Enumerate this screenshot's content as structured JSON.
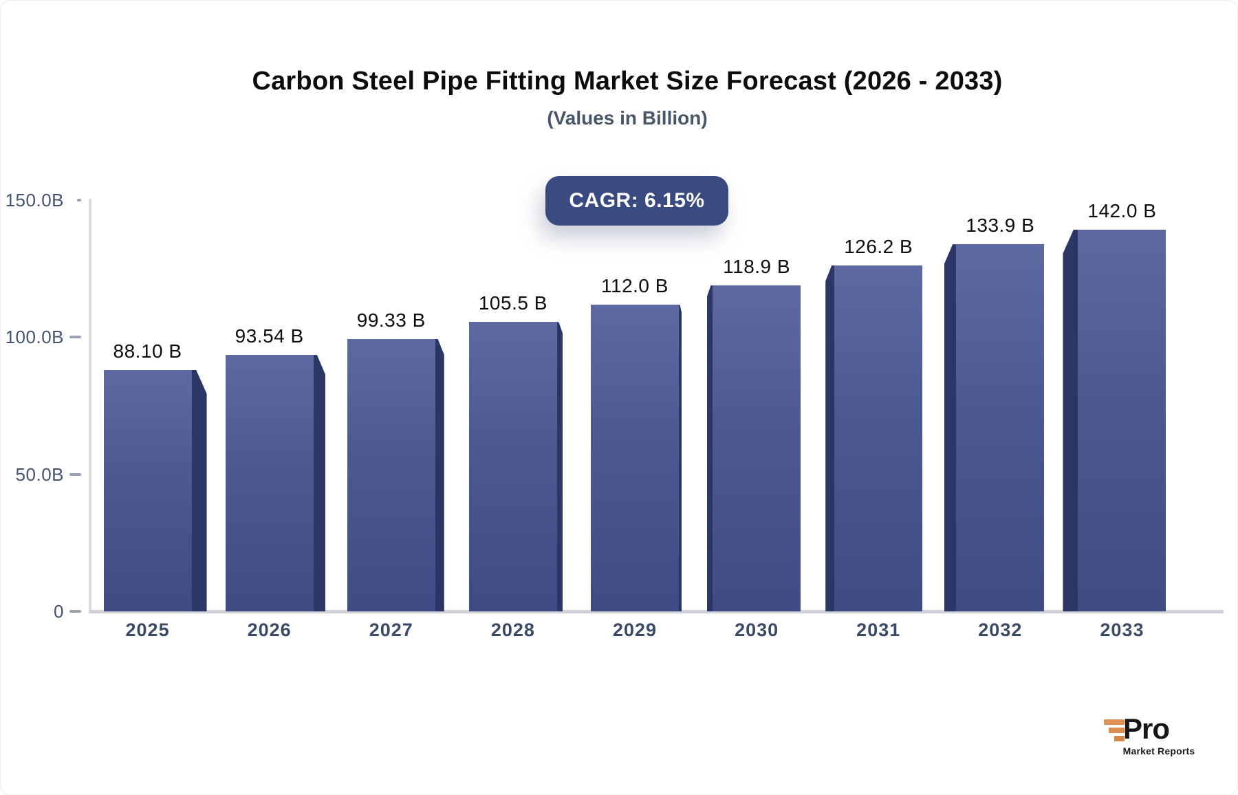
{
  "header": {
    "title": "Carbon Steel Pipe Fitting Market Size Forecast (2026 - 2033)",
    "subtitle": "(Values in Billion)",
    "cagr_label": "CAGR: 6.15%"
  },
  "chart_data": {
    "type": "bar",
    "title": "Carbon Steel Pipe Fitting Market Size Forecast (2026 - 2033)",
    "subtitle": "(Values in Billion)",
    "cagr_percent": 6.15,
    "unit": "Billion",
    "categories": [
      "2025",
      "2026",
      "2027",
      "2028",
      "2029",
      "2030",
      "2031",
      "2032",
      "2033"
    ],
    "values": [
      88.1,
      93.54,
      99.33,
      105.5,
      112.0,
      118.9,
      126.2,
      133.9,
      142.0
    ],
    "value_labels": [
      "88.10 B",
      "93.54 B",
      "99.33 B",
      "105.5 B",
      "112.0 B",
      "118.9 B",
      "126.2 B",
      "133.9 B",
      "142.0 B"
    ],
    "ylim": [
      0,
      150
    ],
    "yticks": [
      {
        "value": 150,
        "label": "150.0B"
      },
      {
        "value": 100,
        "label": "100.0B"
      },
      {
        "value": 50,
        "label": "50.0B"
      },
      {
        "value": 0,
        "label": "0"
      }
    ],
    "grid": false,
    "legend": false,
    "colors": {
      "bar_front_top": "#5d69a0",
      "bar_front_bottom": "#404b85",
      "bar_side": "#2c3666",
      "badge_background": "#394a80",
      "badge_text": "#ffffff",
      "axis_line": "#d0d2d8",
      "tick_text": "#44536f",
      "year_text": "#3a4a66",
      "value_text": "#0d0d0d",
      "subtitle_text": "#475569"
    }
  },
  "logo": {
    "name": "Pro",
    "tagline": "Market Reports",
    "stripe_color": "#dd9256"
  }
}
